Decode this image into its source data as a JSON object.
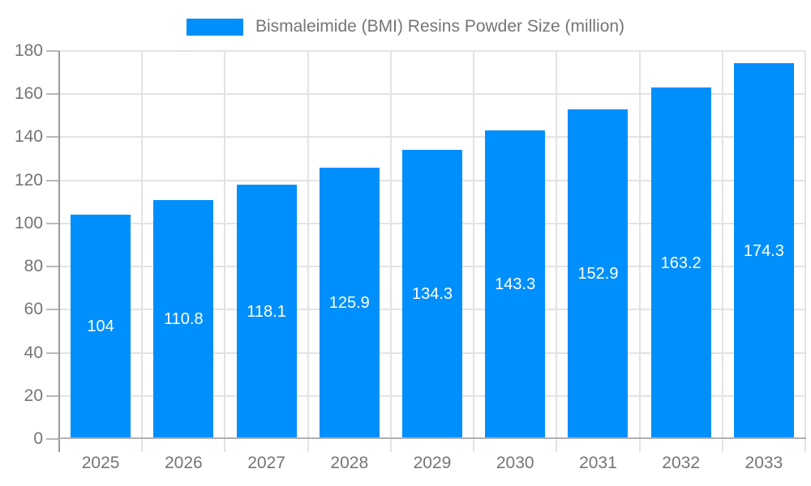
{
  "chart_data": {
    "type": "bar",
    "title": "Bismaleimide (BMI) Resins Powder Size (million)",
    "categories": [
      "2025",
      "2026",
      "2027",
      "2028",
      "2029",
      "2030",
      "2031",
      "2032",
      "2033"
    ],
    "values": [
      104,
      110.8,
      118.1,
      125.9,
      134.3,
      143.3,
      152.9,
      163.2,
      174.3
    ],
    "xlabel": "",
    "ylabel": "",
    "ylim": [
      0,
      180
    ],
    "ytick_step": 20,
    "yticks": [
      0,
      20,
      40,
      60,
      80,
      100,
      120,
      140,
      160,
      180
    ],
    "legend_position": "top",
    "grid": true,
    "value_labels_position": "inside-center",
    "colors": {
      "bar": "#008FFB",
      "value_label": "#ffffff",
      "grid_line": "#e3e3e3",
      "y_axis_line": "#9b9b9b",
      "x_axis_line": "#b1b1b1",
      "tick": "#b9b9b9",
      "axis_label": "#757575",
      "background": "#ffffff"
    }
  }
}
